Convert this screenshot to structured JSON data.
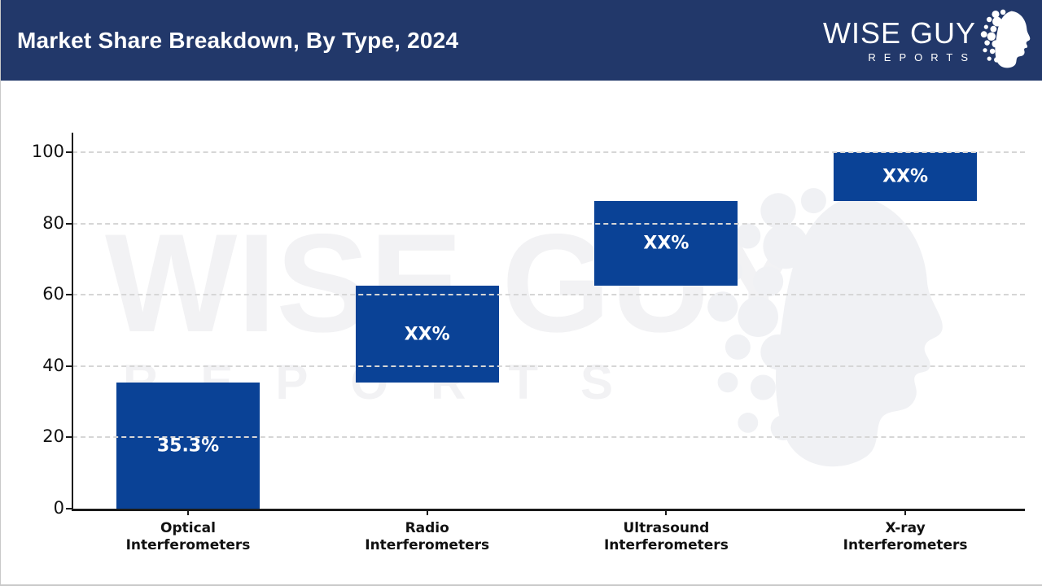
{
  "header": {
    "title": "Market Share Breakdown, By Type, 2024",
    "logo": {
      "brand": "WISE GUY",
      "subtitle": "REPORTS"
    }
  },
  "watermark": {
    "line1": "WISE GUY",
    "line2": "REPORTS"
  },
  "chart_data": {
    "type": "bar",
    "subtype": "waterfall",
    "title": "Market Share Breakdown, By Type, 2024",
    "xlabel": "",
    "ylabel": "",
    "ylim": [
      0,
      100
    ],
    "yticks": [
      0,
      20,
      40,
      60,
      80,
      100
    ],
    "grid": "horizontal-dashed",
    "legend": "none",
    "bar_color": "#0a4296",
    "label_color": "#ffffff",
    "categories": [
      "Optical Interferometers",
      "Radio Interferometers",
      "Ultrasound Interferometers",
      "X-ray Interferometers"
    ],
    "category_lines": [
      [
        "Optical",
        "Interferometers"
      ],
      [
        "Radio",
        "Interferometers"
      ],
      [
        "Ultrasound",
        "Interferometers"
      ],
      [
        "X-ray",
        "Interferometers"
      ]
    ],
    "segments": [
      {
        "category": "Optical Interferometers",
        "start": 0,
        "end": 35.3,
        "value": 35.3,
        "label": "35.3%"
      },
      {
        "category": "Radio Interferometers",
        "start": 35.3,
        "end": 62.6,
        "value": 27.3,
        "label": "XX%"
      },
      {
        "category": "Ultrasound Interferometers",
        "start": 62.6,
        "end": 86.3,
        "value": 23.7,
        "label": "XX%"
      },
      {
        "category": "X-ray Interferometers",
        "start": 86.3,
        "end": 100,
        "value": 13.7,
        "label": "XX%"
      }
    ]
  },
  "colors": {
    "header_bg": "#22386a",
    "bar": "#0a4296",
    "grid": "#d6d6d6",
    "axis": "#1a1a1a",
    "watermark": "#f2f2f4"
  }
}
